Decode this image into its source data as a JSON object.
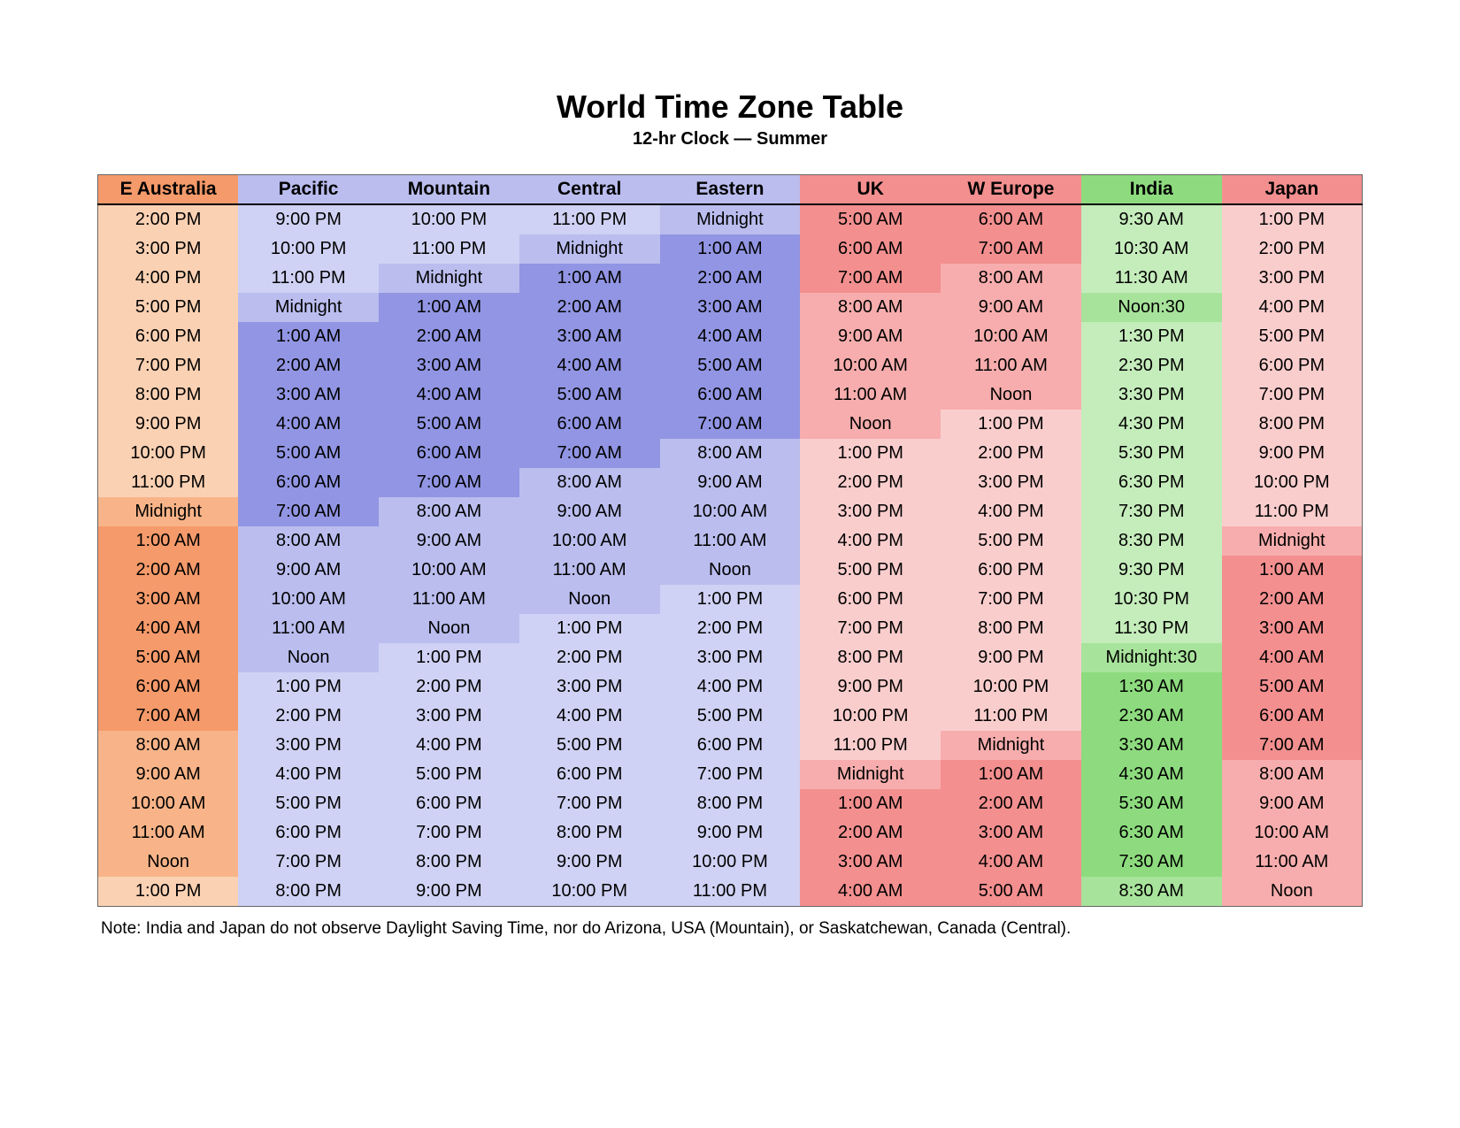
{
  "title": "World Time Zone Table",
  "subtitle": "12-hr Clock — Summer",
  "note": "Note: India and Japan do not observe Daylight Saving Time, nor do Arizona, USA (Mountain), or Saskatchewan, Canada (Central).",
  "headers": [
    {
      "label": "E Australia",
      "bg": "#f59a6a"
    },
    {
      "label": "Pacific",
      "bg": "#babdee"
    },
    {
      "label": "Mountain",
      "bg": "#babdee"
    },
    {
      "label": "Central",
      "bg": "#babdee"
    },
    {
      "label": "Eastern",
      "bg": "#babdee"
    },
    {
      "label": "UK",
      "bg": "#f38f8f"
    },
    {
      "label": "W Europe",
      "bg": "#f38f8f"
    },
    {
      "label": "India",
      "bg": "#8ddb7e"
    },
    {
      "label": "Japan",
      "bg": "#f38f8f"
    }
  ],
  "colors": {
    "o_l": "#fbd1b3",
    "o_m": "#f8b488",
    "o_d": "#f59a6a",
    "b_l": "#cfd2f4",
    "b_m": "#babdee",
    "b_d": "#9195e3",
    "r_l": "#facdcd",
    "r_m": "#f7adad",
    "r_d": "#f38f8f",
    "g_l": "#c5ecbb",
    "g_m": "#a8e39b",
    "g_d": "#8ddb7e"
  },
  "rows": [
    [
      [
        "2:00 PM",
        "o_l"
      ],
      [
        "9:00 PM",
        "b_l"
      ],
      [
        "10:00 PM",
        "b_l"
      ],
      [
        "11:00 PM",
        "b_l"
      ],
      [
        "Midnight",
        "b_m"
      ],
      [
        "5:00 AM",
        "r_d"
      ],
      [
        "6:00 AM",
        "r_d"
      ],
      [
        "9:30 AM",
        "g_l"
      ],
      [
        "1:00 PM",
        "r_l"
      ]
    ],
    [
      [
        "3:00 PM",
        "o_l"
      ],
      [
        "10:00 PM",
        "b_l"
      ],
      [
        "11:00 PM",
        "b_l"
      ],
      [
        "Midnight",
        "b_m"
      ],
      [
        "1:00 AM",
        "b_d"
      ],
      [
        "6:00 AM",
        "r_d"
      ],
      [
        "7:00 AM",
        "r_d"
      ],
      [
        "10:30 AM",
        "g_l"
      ],
      [
        "2:00 PM",
        "r_l"
      ]
    ],
    [
      [
        "4:00 PM",
        "o_l"
      ],
      [
        "11:00 PM",
        "b_l"
      ],
      [
        "Midnight",
        "b_m"
      ],
      [
        "1:00 AM",
        "b_d"
      ],
      [
        "2:00 AM",
        "b_d"
      ],
      [
        "7:00 AM",
        "r_d"
      ],
      [
        "8:00 AM",
        "r_m"
      ],
      [
        "11:30 AM",
        "g_l"
      ],
      [
        "3:00 PM",
        "r_l"
      ]
    ],
    [
      [
        "5:00 PM",
        "o_l"
      ],
      [
        "Midnight",
        "b_m"
      ],
      [
        "1:00 AM",
        "b_d"
      ],
      [
        "2:00 AM",
        "b_d"
      ],
      [
        "3:00 AM",
        "b_d"
      ],
      [
        "8:00 AM",
        "r_m"
      ],
      [
        "9:00 AM",
        "r_m"
      ],
      [
        "Noon:30",
        "g_m"
      ],
      [
        "4:00 PM",
        "r_l"
      ]
    ],
    [
      [
        "6:00 PM",
        "o_l"
      ],
      [
        "1:00 AM",
        "b_d"
      ],
      [
        "2:00 AM",
        "b_d"
      ],
      [
        "3:00 AM",
        "b_d"
      ],
      [
        "4:00 AM",
        "b_d"
      ],
      [
        "9:00 AM",
        "r_m"
      ],
      [
        "10:00 AM",
        "r_m"
      ],
      [
        "1:30 PM",
        "g_l"
      ],
      [
        "5:00 PM",
        "r_l"
      ]
    ],
    [
      [
        "7:00 PM",
        "o_l"
      ],
      [
        "2:00 AM",
        "b_d"
      ],
      [
        "3:00 AM",
        "b_d"
      ],
      [
        "4:00 AM",
        "b_d"
      ],
      [
        "5:00 AM",
        "b_d"
      ],
      [
        "10:00 AM",
        "r_m"
      ],
      [
        "11:00 AM",
        "r_m"
      ],
      [
        "2:30 PM",
        "g_l"
      ],
      [
        "6:00 PM",
        "r_l"
      ]
    ],
    [
      [
        "8:00 PM",
        "o_l"
      ],
      [
        "3:00 AM",
        "b_d"
      ],
      [
        "4:00 AM",
        "b_d"
      ],
      [
        "5:00 AM",
        "b_d"
      ],
      [
        "6:00 AM",
        "b_d"
      ],
      [
        "11:00 AM",
        "r_m"
      ],
      [
        "Noon",
        "r_m"
      ],
      [
        "3:30 PM",
        "g_l"
      ],
      [
        "7:00 PM",
        "r_l"
      ]
    ],
    [
      [
        "9:00 PM",
        "o_l"
      ],
      [
        "4:00 AM",
        "b_d"
      ],
      [
        "5:00 AM",
        "b_d"
      ],
      [
        "6:00 AM",
        "b_d"
      ],
      [
        "7:00 AM",
        "b_d"
      ],
      [
        "Noon",
        "r_m"
      ],
      [
        "1:00 PM",
        "r_l"
      ],
      [
        "4:30 PM",
        "g_l"
      ],
      [
        "8:00 PM",
        "r_l"
      ]
    ],
    [
      [
        "10:00 PM",
        "o_l"
      ],
      [
        "5:00 AM",
        "b_d"
      ],
      [
        "6:00 AM",
        "b_d"
      ],
      [
        "7:00 AM",
        "b_d"
      ],
      [
        "8:00 AM",
        "b_m"
      ],
      [
        "1:00 PM",
        "r_l"
      ],
      [
        "2:00 PM",
        "r_l"
      ],
      [
        "5:30 PM",
        "g_l"
      ],
      [
        "9:00 PM",
        "r_l"
      ]
    ],
    [
      [
        "11:00 PM",
        "o_l"
      ],
      [
        "6:00 AM",
        "b_d"
      ],
      [
        "7:00 AM",
        "b_d"
      ],
      [
        "8:00 AM",
        "b_m"
      ],
      [
        "9:00 AM",
        "b_m"
      ],
      [
        "2:00 PM",
        "r_l"
      ],
      [
        "3:00 PM",
        "r_l"
      ],
      [
        "6:30 PM",
        "g_l"
      ],
      [
        "10:00 PM",
        "r_l"
      ]
    ],
    [
      [
        "Midnight",
        "o_m"
      ],
      [
        "7:00 AM",
        "b_d"
      ],
      [
        "8:00 AM",
        "b_m"
      ],
      [
        "9:00 AM",
        "b_m"
      ],
      [
        "10:00 AM",
        "b_m"
      ],
      [
        "3:00 PM",
        "r_l"
      ],
      [
        "4:00 PM",
        "r_l"
      ],
      [
        "7:30 PM",
        "g_l"
      ],
      [
        "11:00 PM",
        "r_l"
      ]
    ],
    [
      [
        "1:00 AM",
        "o_d"
      ],
      [
        "8:00 AM",
        "b_m"
      ],
      [
        "9:00 AM",
        "b_m"
      ],
      [
        "10:00 AM",
        "b_m"
      ],
      [
        "11:00 AM",
        "b_m"
      ],
      [
        "4:00 PM",
        "r_l"
      ],
      [
        "5:00 PM",
        "r_l"
      ],
      [
        "8:30 PM",
        "g_l"
      ],
      [
        "Midnight",
        "r_m"
      ]
    ],
    [
      [
        "2:00 AM",
        "o_d"
      ],
      [
        "9:00 AM",
        "b_m"
      ],
      [
        "10:00 AM",
        "b_m"
      ],
      [
        "11:00 AM",
        "b_m"
      ],
      [
        "Noon",
        "b_m"
      ],
      [
        "5:00 PM",
        "r_l"
      ],
      [
        "6:00 PM",
        "r_l"
      ],
      [
        "9:30 PM",
        "g_l"
      ],
      [
        "1:00 AM",
        "r_d"
      ]
    ],
    [
      [
        "3:00 AM",
        "o_d"
      ],
      [
        "10:00 AM",
        "b_m"
      ],
      [
        "11:00 AM",
        "b_m"
      ],
      [
        "Noon",
        "b_m"
      ],
      [
        "1:00 PM",
        "b_l"
      ],
      [
        "6:00 PM",
        "r_l"
      ],
      [
        "7:00 PM",
        "r_l"
      ],
      [
        "10:30 PM",
        "g_l"
      ],
      [
        "2:00 AM",
        "r_d"
      ]
    ],
    [
      [
        "4:00 AM",
        "o_d"
      ],
      [
        "11:00 AM",
        "b_m"
      ],
      [
        "Noon",
        "b_m"
      ],
      [
        "1:00 PM",
        "b_l"
      ],
      [
        "2:00 PM",
        "b_l"
      ],
      [
        "7:00 PM",
        "r_l"
      ],
      [
        "8:00 PM",
        "r_l"
      ],
      [
        "11:30 PM",
        "g_l"
      ],
      [
        "3:00 AM",
        "r_d"
      ]
    ],
    [
      [
        "5:00 AM",
        "o_d"
      ],
      [
        "Noon",
        "b_m"
      ],
      [
        "1:00 PM",
        "b_l"
      ],
      [
        "2:00 PM",
        "b_l"
      ],
      [
        "3:00 PM",
        "b_l"
      ],
      [
        "8:00 PM",
        "r_l"
      ],
      [
        "9:00 PM",
        "r_l"
      ],
      [
        "Midnight:30",
        "g_m"
      ],
      [
        "4:00 AM",
        "r_d"
      ]
    ],
    [
      [
        "6:00 AM",
        "o_d"
      ],
      [
        "1:00 PM",
        "b_l"
      ],
      [
        "2:00 PM",
        "b_l"
      ],
      [
        "3:00 PM",
        "b_l"
      ],
      [
        "4:00 PM",
        "b_l"
      ],
      [
        "9:00 PM",
        "r_l"
      ],
      [
        "10:00 PM",
        "r_l"
      ],
      [
        "1:30 AM",
        "g_d"
      ],
      [
        "5:00 AM",
        "r_d"
      ]
    ],
    [
      [
        "7:00 AM",
        "o_d"
      ],
      [
        "2:00 PM",
        "b_l"
      ],
      [
        "3:00 PM",
        "b_l"
      ],
      [
        "4:00 PM",
        "b_l"
      ],
      [
        "5:00 PM",
        "b_l"
      ],
      [
        "10:00 PM",
        "r_l"
      ],
      [
        "11:00 PM",
        "r_l"
      ],
      [
        "2:30 AM",
        "g_d"
      ],
      [
        "6:00 AM",
        "r_d"
      ]
    ],
    [
      [
        "8:00 AM",
        "o_m"
      ],
      [
        "3:00 PM",
        "b_l"
      ],
      [
        "4:00 PM",
        "b_l"
      ],
      [
        "5:00 PM",
        "b_l"
      ],
      [
        "6:00 PM",
        "b_l"
      ],
      [
        "11:00 PM",
        "r_l"
      ],
      [
        "Midnight",
        "r_m"
      ],
      [
        "3:30 AM",
        "g_d"
      ],
      [
        "7:00 AM",
        "r_d"
      ]
    ],
    [
      [
        "9:00 AM",
        "o_m"
      ],
      [
        "4:00 PM",
        "b_l"
      ],
      [
        "5:00 PM",
        "b_l"
      ],
      [
        "6:00 PM",
        "b_l"
      ],
      [
        "7:00 PM",
        "b_l"
      ],
      [
        "Midnight",
        "r_m"
      ],
      [
        "1:00 AM",
        "r_d"
      ],
      [
        "4:30 AM",
        "g_d"
      ],
      [
        "8:00 AM",
        "r_m"
      ]
    ],
    [
      [
        "10:00 AM",
        "o_m"
      ],
      [
        "5:00 PM",
        "b_l"
      ],
      [
        "6:00 PM",
        "b_l"
      ],
      [
        "7:00 PM",
        "b_l"
      ],
      [
        "8:00 PM",
        "b_l"
      ],
      [
        "1:00 AM",
        "r_d"
      ],
      [
        "2:00 AM",
        "r_d"
      ],
      [
        "5:30 AM",
        "g_d"
      ],
      [
        "9:00 AM",
        "r_m"
      ]
    ],
    [
      [
        "11:00 AM",
        "o_m"
      ],
      [
        "6:00 PM",
        "b_l"
      ],
      [
        "7:00 PM",
        "b_l"
      ],
      [
        "8:00 PM",
        "b_l"
      ],
      [
        "9:00 PM",
        "b_l"
      ],
      [
        "2:00 AM",
        "r_d"
      ],
      [
        "3:00 AM",
        "r_d"
      ],
      [
        "6:30 AM",
        "g_d"
      ],
      [
        "10:00 AM",
        "r_m"
      ]
    ],
    [
      [
        "Noon",
        "o_m"
      ],
      [
        "7:00 PM",
        "b_l"
      ],
      [
        "8:00 PM",
        "b_l"
      ],
      [
        "9:00 PM",
        "b_l"
      ],
      [
        "10:00 PM",
        "b_l"
      ],
      [
        "3:00 AM",
        "r_d"
      ],
      [
        "4:00 AM",
        "r_d"
      ],
      [
        "7:30 AM",
        "g_d"
      ],
      [
        "11:00 AM",
        "r_m"
      ]
    ],
    [
      [
        "1:00 PM",
        "o_l"
      ],
      [
        "8:00 PM",
        "b_l"
      ],
      [
        "9:00 PM",
        "b_l"
      ],
      [
        "10:00 PM",
        "b_l"
      ],
      [
        "11:00 PM",
        "b_l"
      ],
      [
        "4:00 AM",
        "r_d"
      ],
      [
        "5:00 AM",
        "r_d"
      ],
      [
        "8:30 AM",
        "g_m"
      ],
      [
        "Noon",
        "r_m"
      ]
    ]
  ]
}
